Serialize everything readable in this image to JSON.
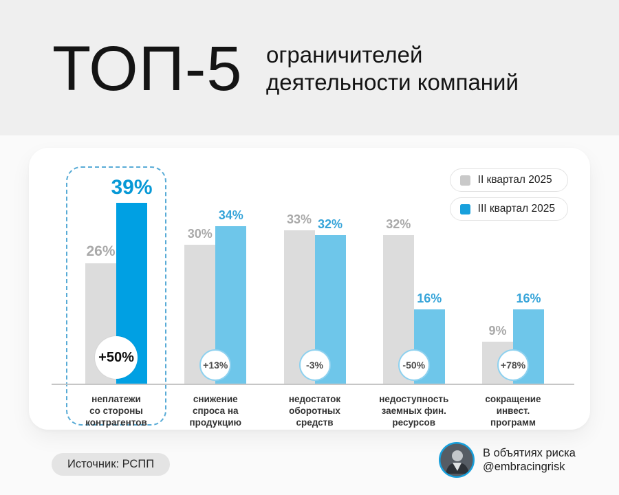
{
  "title": {
    "main": "ТОП-5",
    "subtitle": "ограничителей\nдеятельности компаний"
  },
  "legend": {
    "items": [
      {
        "label": "II квартал 2025",
        "color": "#c9c9c9"
      },
      {
        "label": "III квартал 2025",
        "color": "#18a0dc"
      }
    ]
  },
  "chart_data": {
    "type": "bar",
    "title": "ТОП-5 ограничителей деятельности компаний",
    "unit": "%",
    "categories": [
      "неплатежи\nсо стороны\nконтрагентов",
      "снижение\nспроса на\nпродукцию",
      "недостаток\nоборотных\nсредств",
      "недоступность\nзаемных фин.\nресурсов",
      "сокращение\nинвест.\nпрограмм"
    ],
    "series": [
      {
        "name": "II квартал 2025",
        "values": [
          26,
          30,
          33,
          32,
          9
        ],
        "color": "#dcdcdc",
        "label_color": "#a9a9a9"
      },
      {
        "name": "III квартал 2025",
        "values": [
          39,
          34,
          32,
          16,
          16
        ],
        "color": "#6ec6ea",
        "label_color": "#36a4d9",
        "highlight_color": "#00a0e3",
        "highlight_label_color": "#0899d6"
      }
    ],
    "change_badges": [
      "+50%",
      "+13%",
      "-3%",
      "-50%",
      "+78%"
    ],
    "highlighted_group": 0,
    "ylim": [
      0,
      40
    ],
    "grid": false,
    "legend_position": "top-right"
  },
  "footer": {
    "source": "Источник: РСПП",
    "brand_name": "В объятиях риска",
    "brand_handle": "@embracingrisk"
  },
  "colors": {
    "header_band": "#efefef",
    "page_bg": "#fafafa",
    "card_bg": "#ffffff",
    "baseline": "#c6c6c6",
    "highlight_border": "#58abd6",
    "accent_blue": "#00a0e3",
    "light_blue": "#6ec6ea",
    "gray_bar": "#dcdcdc"
  }
}
